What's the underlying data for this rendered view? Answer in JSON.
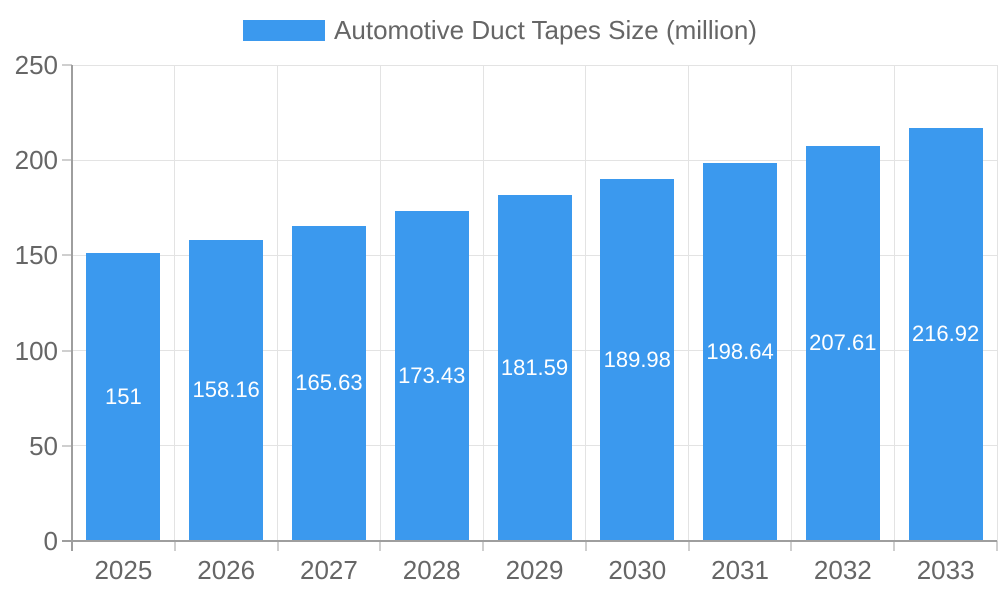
{
  "chart_data": {
    "type": "bar",
    "title": "Automotive Duct Tapes Size (million)",
    "legend": {
      "label": "Automotive Duct Tapes Size (million)",
      "position": "top"
    },
    "categories": [
      "2025",
      "2026",
      "2027",
      "2028",
      "2029",
      "2030",
      "2031",
      "2032",
      "2033"
    ],
    "values": [
      151,
      158.16,
      165.63,
      173.43,
      181.59,
      189.98,
      198.64,
      207.61,
      216.92
    ],
    "value_labels": [
      "151",
      "158.16",
      "165.63",
      "173.43",
      "181.59",
      "189.98",
      "198.64",
      "207.61",
      "216.92"
    ],
    "xlabel": "",
    "ylabel": "",
    "ylim": [
      0,
      250
    ],
    "yticks": [
      0,
      50,
      100,
      150,
      200,
      250
    ],
    "grid": true,
    "colors": {
      "bar": "#3B99EE",
      "grid": "#e3e3e3",
      "tick": "#cfcfcf",
      "axis": "#9e9e9e",
      "text": "#666666",
      "value_label": "#ffffff",
      "background": "#ffffff"
    }
  }
}
